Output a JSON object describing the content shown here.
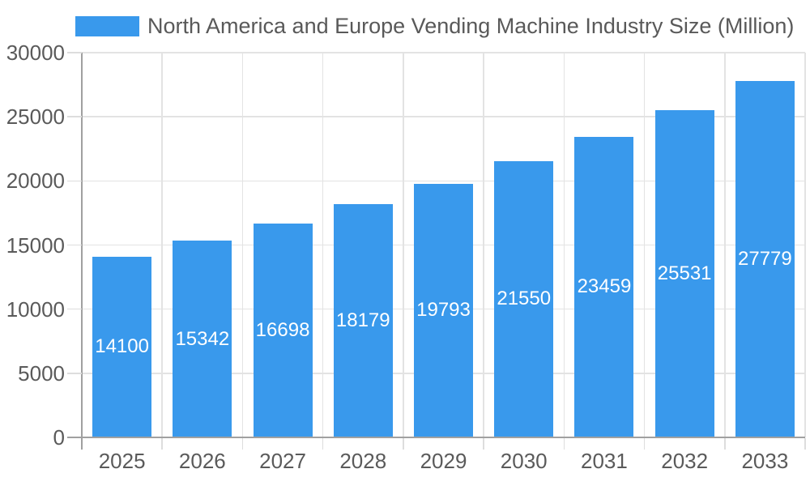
{
  "chart_data": {
    "type": "bar",
    "title": "North America and Europe Vending Machine Industry Size (Million)",
    "categories": [
      "2025",
      "2026",
      "2027",
      "2028",
      "2029",
      "2030",
      "2031",
      "2032",
      "2033"
    ],
    "values": [
      14100,
      15342,
      16698,
      18179,
      19793,
      21550,
      23459,
      25531,
      27779
    ],
    "series": [
      {
        "name": "North America and Europe Vending Machine Industry Size (Million)",
        "values": [
          14100,
          15342,
          16698,
          18179,
          19793,
          21550,
          23459,
          25531,
          27779
        ]
      }
    ],
    "xlabel": "",
    "ylabel": "",
    "ylim": [
      0,
      30000
    ],
    "y_ticks": [
      0,
      5000,
      10000,
      15000,
      20000,
      25000,
      30000
    ],
    "grid": true,
    "legend_position": "top-left",
    "value_labels": "centered-inside-bars",
    "colors": {
      "bar": "#3999EC",
      "bar_value_text": "#ffffff",
      "axis_text": "#5a5a5a",
      "legend_text": "#595959",
      "grid_line": "#e3e3e3",
      "axis_line": "#a0a0a0",
      "background": "#ffffff"
    }
  }
}
